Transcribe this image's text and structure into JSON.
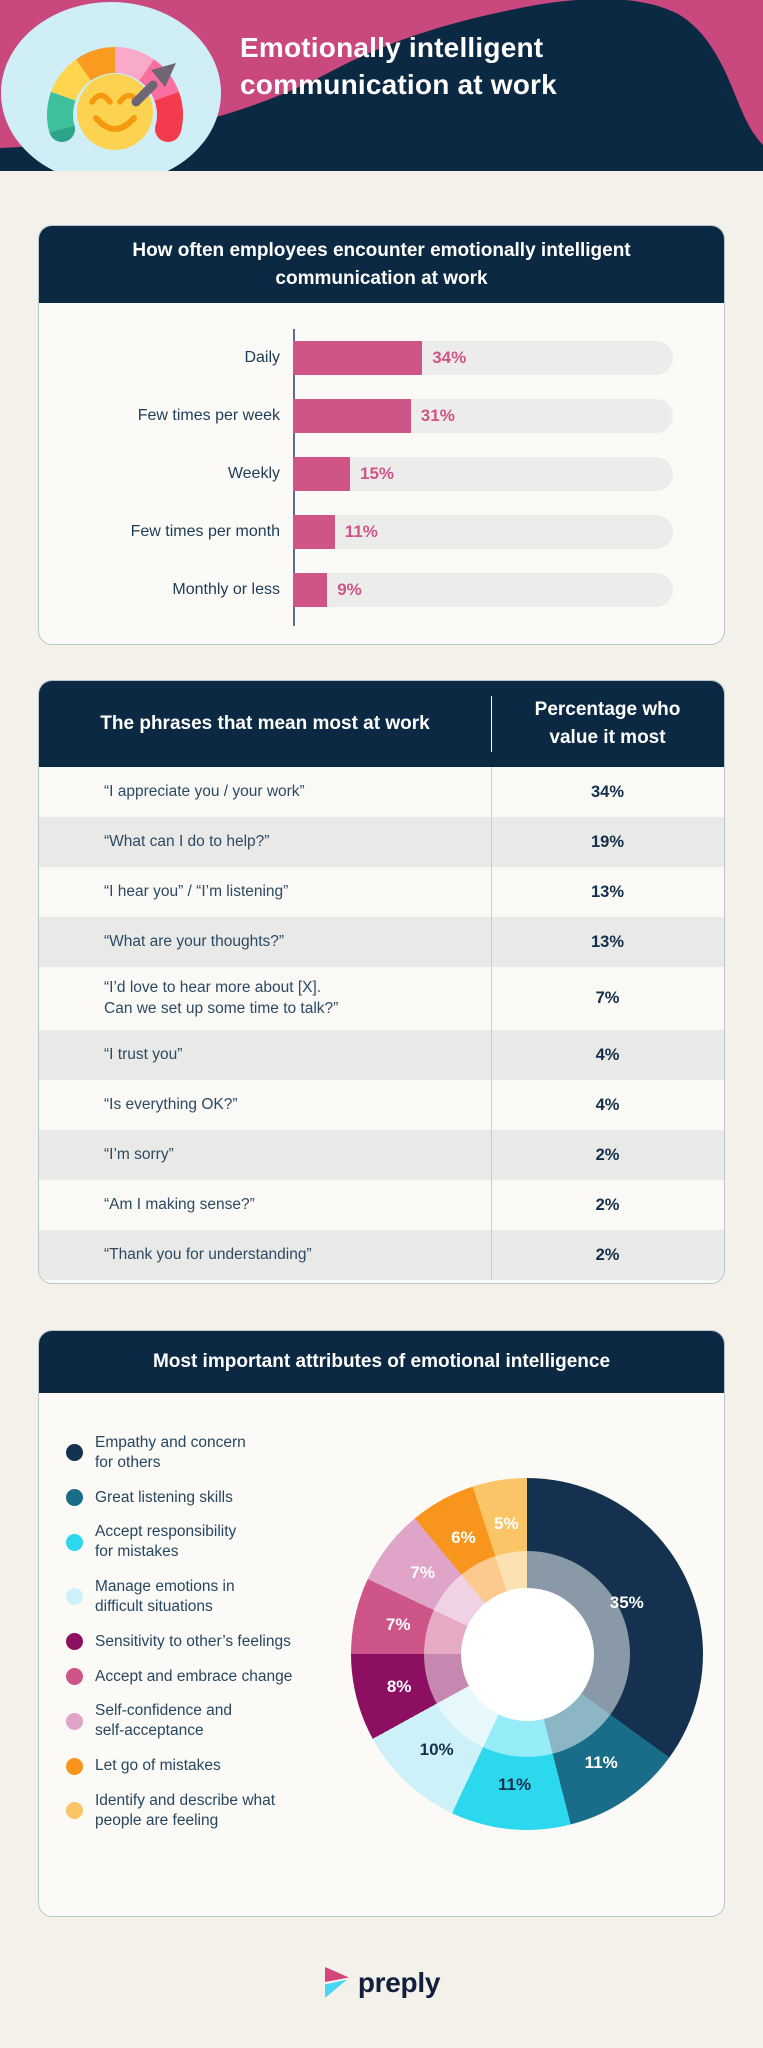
{
  "colors": {
    "navy": "#0c2943",
    "magenta_bg": "#c9497f",
    "blob_blue": "#cfeef5",
    "cream": "#f3f1ea",
    "bar_pink": "#ce5585",
    "track_gray": "#ececea",
    "row_alt": "#e9e9e7",
    "card_border": "#b9c5cf"
  },
  "header": {
    "title": "Emotionally intelligent\ncommunication at work"
  },
  "bar_chart": {
    "title": "How often employees encounter emotionally intelligent communication at work",
    "items": [
      {
        "label": "Daily",
        "value": 34,
        "pct": "34%"
      },
      {
        "label": "Few times per week",
        "value": 31,
        "pct": "31%"
      },
      {
        "label": "Weekly",
        "value": 15,
        "pct": "15%"
      },
      {
        "label": "Few times per month",
        "value": 11,
        "pct": "11%"
      },
      {
        "label": "Monthly or less",
        "value": 9,
        "pct": "9%"
      }
    ]
  },
  "table": {
    "col1_header": "The phrases that mean most at work",
    "col2_header": "Percentage who\nvalue it most",
    "rows": [
      {
        "phrase": "“I appreciate you / your work”",
        "value": "34%"
      },
      {
        "phrase": "“What can I do to help?”",
        "value": "19%"
      },
      {
        "phrase": "“I hear you” / “I’m listening”",
        "value": "13%"
      },
      {
        "phrase": "“What are your thoughts?”",
        "value": "13%"
      },
      {
        "phrase": "“I’d love to hear more about [X].\nCan we set up some time to talk?”",
        "value": "7%"
      },
      {
        "phrase": "“I trust you”",
        "value": "4%"
      },
      {
        "phrase": "“Is everything OK?”",
        "value": "4%"
      },
      {
        "phrase": "“I’m sorry”",
        "value": "2%"
      },
      {
        "phrase": "“Am I making sense?”",
        "value": "2%"
      },
      {
        "phrase": "“Thank you for understanding”",
        "value": "2%"
      }
    ]
  },
  "donut": {
    "title": "Most important attributes of emotional intelligence",
    "slices": [
      {
        "label": "Empathy and concern\nfor others",
        "value": 35,
        "pct": "35%",
        "color": "#14324f",
        "label_color": "#ffffff"
      },
      {
        "label": "Great listening skills",
        "value": 11,
        "pct": "11%",
        "color": "#1a6d89",
        "label_color": "#ffffff"
      },
      {
        "label": "Accept responsibility\nfor mistakes",
        "value": 11,
        "pct": "11%",
        "color": "#2cd8ee",
        "label_color": "#14324f"
      },
      {
        "label": "Manage emotions in\ndifficult situations",
        "value": 10,
        "pct": "10%",
        "color": "#cdf1f8",
        "label_color": "#14324f"
      },
      {
        "label": "Sensitivity to other’s feelings",
        "value": 8,
        "pct": "8%",
        "color": "#8c0f61",
        "label_color": "#ffffff"
      },
      {
        "label": "Accept and embrace change",
        "value": 7,
        "pct": "7%",
        "color": "#ce5589",
        "label_color": "#ffffff"
      },
      {
        "label": "Self-confidence and\nself-acceptance",
        "value": 7,
        "pct": "7%",
        "color": "#dfa4c7",
        "label_color": "#ffffff"
      },
      {
        "label": "Let go of mistakes",
        "value": 6,
        "pct": "6%",
        "color": "#f8951d",
        "label_color": "#ffffff"
      },
      {
        "label": "Identify and describe what\npeople are feeling",
        "value": 5,
        "pct": "5%",
        "color": "#f9c566",
        "label_color": "#ffffff"
      }
    ]
  },
  "footer": {
    "brand": "preply"
  },
  "chart_data": [
    {
      "type": "bar",
      "orientation": "horizontal",
      "title": "How often employees encounter emotionally intelligent communication at work",
      "categories": [
        "Daily",
        "Few times per week",
        "Weekly",
        "Few times per month",
        "Monthly or less"
      ],
      "values": [
        34,
        31,
        15,
        11,
        9
      ],
      "value_unit": "percent",
      "xlim": [
        0,
        100
      ],
      "bar_color": "#ce5585",
      "track_color": "#ececea",
      "grid": false
    },
    {
      "type": "table",
      "columns": [
        "The phrases that mean most at work",
        "Percentage who value it most"
      ],
      "rows": [
        [
          "“I appreciate you / your work”",
          "34%"
        ],
        [
          "“What can I do to help?”",
          "19%"
        ],
        [
          "“I hear you” / “I’m listening”",
          "13%"
        ],
        [
          "“What are your thoughts?”",
          "13%"
        ],
        [
          "“I’d love to hear more about [X]. Can we set up some time to talk?”",
          "7%"
        ],
        [
          "“I trust you”",
          "4%"
        ],
        [
          "“Is everything OK?”",
          "4%"
        ],
        [
          "“I’m sorry”",
          "2%"
        ],
        [
          "“Am I making sense?”",
          "2%"
        ],
        [
          "“Thank you for understanding”",
          "2%"
        ]
      ]
    },
    {
      "type": "pie",
      "donut": true,
      "title": "Most important attributes of emotional intelligence",
      "categories": [
        "Empathy and concern for others",
        "Great listening skills",
        "Accept responsibility for mistakes",
        "Manage emotions in difficult situations",
        "Sensitivity to other’s feelings",
        "Accept and embrace change",
        "Self-confidence and self-acceptance",
        "Let go of mistakes",
        "Identify and describe what people are feeling"
      ],
      "values": [
        35,
        11,
        11,
        10,
        8,
        7,
        7,
        6,
        5
      ],
      "colors": [
        "#14324f",
        "#1a6d89",
        "#2cd8ee",
        "#cdf1f8",
        "#8c0f61",
        "#ce5589",
        "#dfa4c7",
        "#f8951d",
        "#f9c566"
      ],
      "legend_position": "left",
      "start_angle_deg": 0,
      "direction": "clockwise"
    }
  ]
}
